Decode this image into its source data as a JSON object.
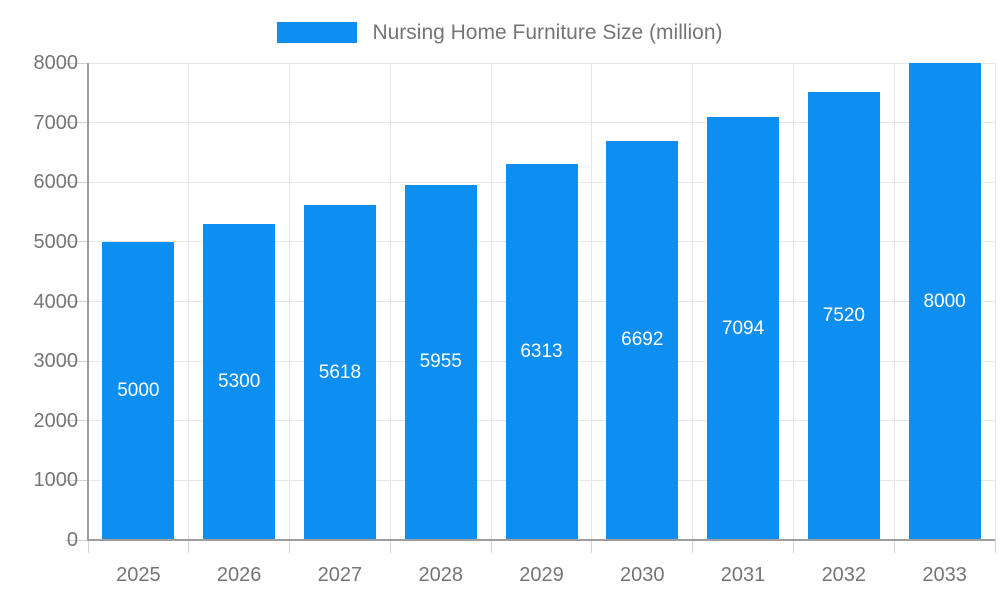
{
  "legend": {
    "label": "Nursing Home Furniture Size (million)"
  },
  "colors": {
    "bar": "#0d8ff2",
    "bar_label": "#ffffff",
    "grid": "#e6e6e6",
    "tick": "#d2d2d2",
    "axis": "#9e9e9e",
    "text": "#757575",
    "background": "#ffffff"
  },
  "chart_data": {
    "type": "bar",
    "title": "Nursing Home Furniture Size (million)",
    "categories": [
      "2025",
      "2026",
      "2027",
      "2028",
      "2029",
      "2030",
      "2031",
      "2032",
      "2033"
    ],
    "values": [
      5000,
      5300,
      5618,
      5955,
      6313,
      6692,
      7094,
      7520,
      8000
    ],
    "bar_labels": [
      5000,
      5300,
      5618,
      5955,
      6313,
      6692,
      7094,
      7520,
      8000
    ],
    "xlabel": "",
    "ylabel": "",
    "ylim": [
      0,
      8000
    ],
    "yticks": [
      0,
      1000,
      2000,
      3000,
      4000,
      5000,
      6000,
      7000,
      8000
    ],
    "grid": true,
    "legend_position": "top",
    "series": [
      {
        "name": "Nursing Home Furniture Size (million)",
        "values": [
          5000,
          5300,
          5618,
          5955,
          6313,
          6692,
          7094,
          7520,
          8000
        ]
      }
    ]
  }
}
